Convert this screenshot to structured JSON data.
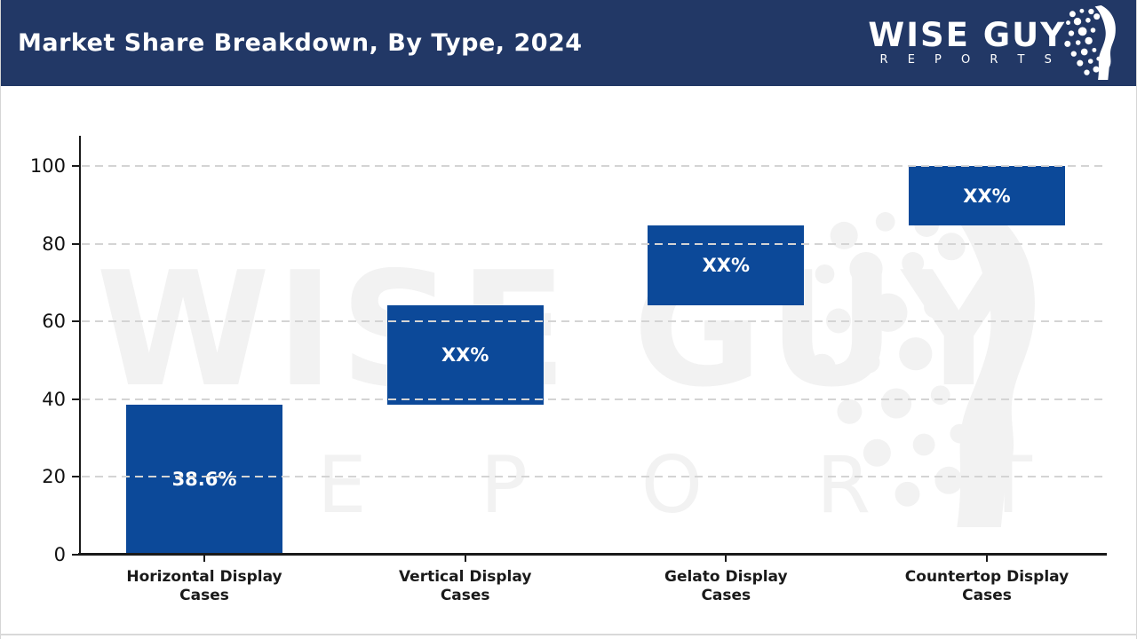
{
  "header": {
    "title": "Market Share Breakdown, By Type, 2024",
    "bg_color": "#223866",
    "logo": {
      "line1": "WISE GUY",
      "line2": "R E P O R T S",
      "head_icon": "dotted-head-profile"
    }
  },
  "watermark": {
    "line1": "WISE GUY",
    "line2": "R E P O R T S",
    "head_icon": "dotted-head-profile"
  },
  "chart_data": {
    "type": "bar",
    "variant": "waterfall",
    "title": "Market Share Breakdown, By Type, 2024",
    "categories": [
      "Horizontal Display Cases",
      "Vertical Display Cases",
      "Gelato Display Cases",
      "Countertop Display Cases"
    ],
    "category_lines": [
      [
        "Horizontal Display",
        "Cases"
      ],
      [
        "Vertical Display",
        "Cases"
      ],
      [
        "Gelato Display",
        "Cases"
      ],
      [
        "Countertop Display",
        "Cases"
      ]
    ],
    "series": [
      {
        "name": "Market Share %",
        "segments": [
          {
            "category": "Horizontal Display Cases",
            "start": 0,
            "end": 38.6,
            "label": "38.6%"
          },
          {
            "category": "Vertical Display Cases",
            "start": 38.6,
            "end": 64.2,
            "label": "XX%"
          },
          {
            "category": "Gelato Display Cases",
            "start": 64.2,
            "end": 84.6,
            "label": "XX%"
          },
          {
            "category": "Countertop Display Cases",
            "start": 84.6,
            "end": 100,
            "label": "XX%"
          }
        ]
      }
    ],
    "ylim": [
      0,
      100
    ],
    "yticks": [
      0,
      20,
      40,
      60,
      80,
      100
    ],
    "xlabel": "",
    "ylabel": "",
    "grid": "horizontal-dashed",
    "legend": "none",
    "bar_color": "#0c4999",
    "bar_label_color": "#ffffff",
    "grid_color": "#d4d4d4",
    "axis_color": "#1a1a1a"
  }
}
